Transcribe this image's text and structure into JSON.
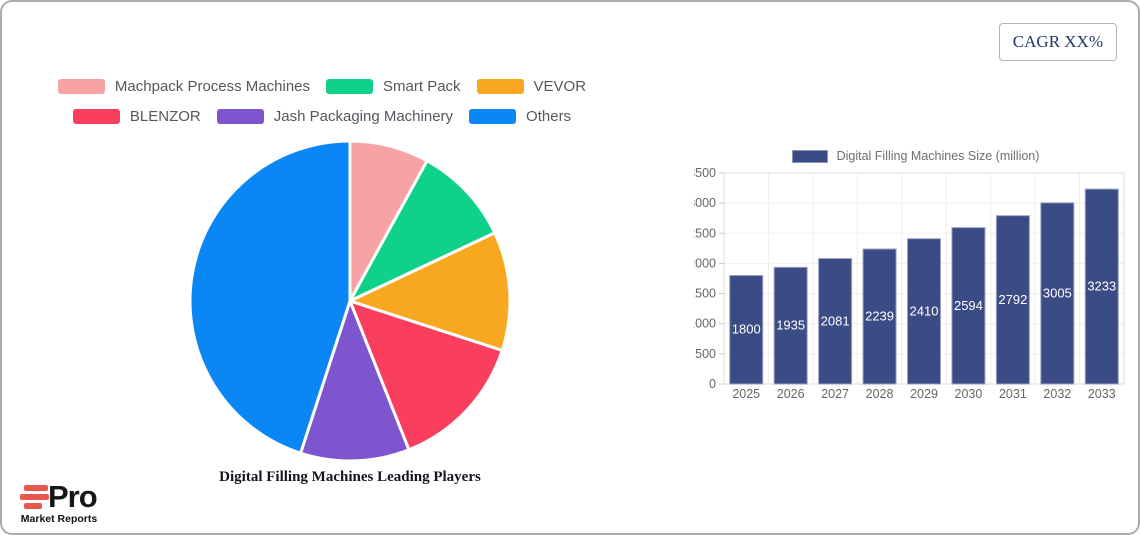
{
  "card": {
    "cagr_label": "CAGR XX%"
  },
  "logo": {
    "brand": "Pro",
    "subtitle": "Market Reports",
    "bar_color": "#e8574e"
  },
  "theme": {
    "background": "#ffffff",
    "card_border": "#ababab",
    "cagr_text_color": "#1f3864",
    "legend_text_color": "#54585e",
    "axis_text_color": "#666666",
    "grid_color": "#efefef",
    "plot_border_color": "#dcdcdc",
    "pie_slice_separator": "#ffffff"
  },
  "chart_data": [
    {
      "type": "pie",
      "title": "Digital Filling Machines Leading Players",
      "labels": [
        "Machpack Process Machines",
        "Smart Pack",
        "VEVOR",
        "BLENZOR",
        "Jash Packaging Machinery",
        "Others"
      ],
      "values": [
        8,
        10,
        12,
        14,
        11,
        45
      ],
      "unit": "percent share (estimated from slice angles)",
      "colors": [
        "#f7a3a6",
        "#0fd18a",
        "#f8a81e",
        "#f93e5e",
        "#7d56cf",
        "#0b86f5"
      ],
      "start_angle": "12 o'clock",
      "direction": "clockwise",
      "legend_position": "top",
      "legend_rows": [
        [
          0,
          1,
          2
        ],
        [
          3,
          4,
          5
        ]
      ]
    },
    {
      "type": "bar",
      "legend_label": "Digital Filling Machines Size (million)",
      "categories": [
        "2025",
        "2026",
        "2027",
        "2028",
        "2029",
        "2030",
        "2031",
        "2032",
        "2033"
      ],
      "values": [
        1800,
        1935,
        2081,
        2239,
        2410,
        2594,
        2792,
        3005,
        3233
      ],
      "xlabel": "",
      "ylabel": "",
      "ylim": [
        0,
        3500
      ],
      "ytick_step": 500,
      "bar_color": "#3b4b85",
      "bar_border_color": "#99a2c0",
      "value_label_color": "#ffffff",
      "grid": true,
      "legend_position": "top"
    }
  ]
}
